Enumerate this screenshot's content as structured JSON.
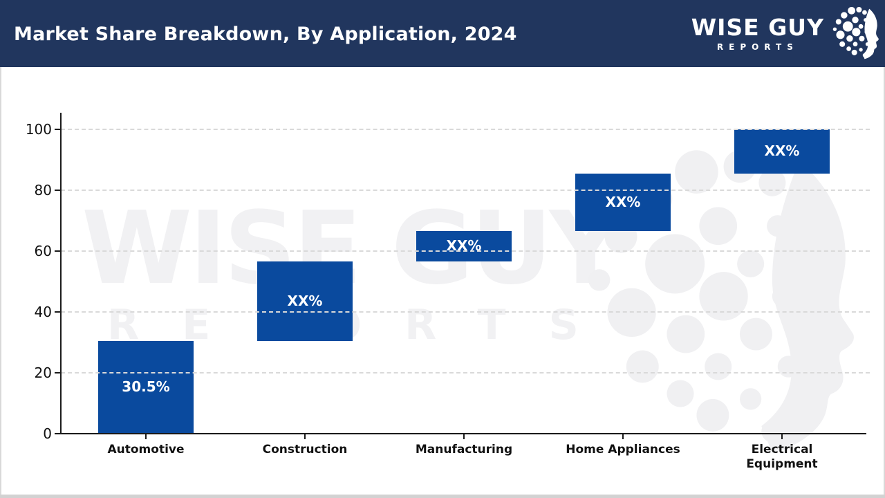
{
  "header": {
    "title": "Market Share Breakdown, By Application, 2024",
    "logo": {
      "line1": "WISE GUY",
      "line2": "REPORTS"
    }
  },
  "watermark": {
    "line1": "WISE GUY",
    "line2": "REPORTS"
  },
  "chart_data": {
    "type": "bar",
    "subtype": "waterfall",
    "title": "Market Share Breakdown, By Application, 2024",
    "categories": [
      "Automotive",
      "Construction",
      "Manufacturing",
      "Home Appliances",
      "Electrical Equipment"
    ],
    "segments": [
      {
        "category": "Automotive",
        "start": 0,
        "end": 30.5,
        "label": "30.5%"
      },
      {
        "category": "Construction",
        "start": 30.5,
        "end": 56.5,
        "label": "XX%"
      },
      {
        "category": "Manufacturing",
        "start": 56.5,
        "end": 66.5,
        "label": "XX%"
      },
      {
        "category": "Home Appliances",
        "start": 66.5,
        "end": 85.5,
        "label": "XX%"
      },
      {
        "category": "Electrical Equipment",
        "start": 85.5,
        "end": 100,
        "label": "XX%"
      }
    ],
    "xlabel": "",
    "ylabel": "",
    "ylim": [
      0,
      105
    ],
    "yticks": [
      0,
      20,
      40,
      60,
      80,
      100
    ],
    "grid": {
      "horizontal": true,
      "style": "dashed"
    },
    "legend": null
  },
  "colors": {
    "header_bg": "#21365e",
    "bar": "#0a4a9e",
    "bar_label": "#ffffff",
    "grid": "#d9d9d9",
    "axis": "#1a1a1a",
    "tick_text": "#111111",
    "watermark": "#f1f1f3",
    "footer_strip": "#d2d2d2"
  }
}
